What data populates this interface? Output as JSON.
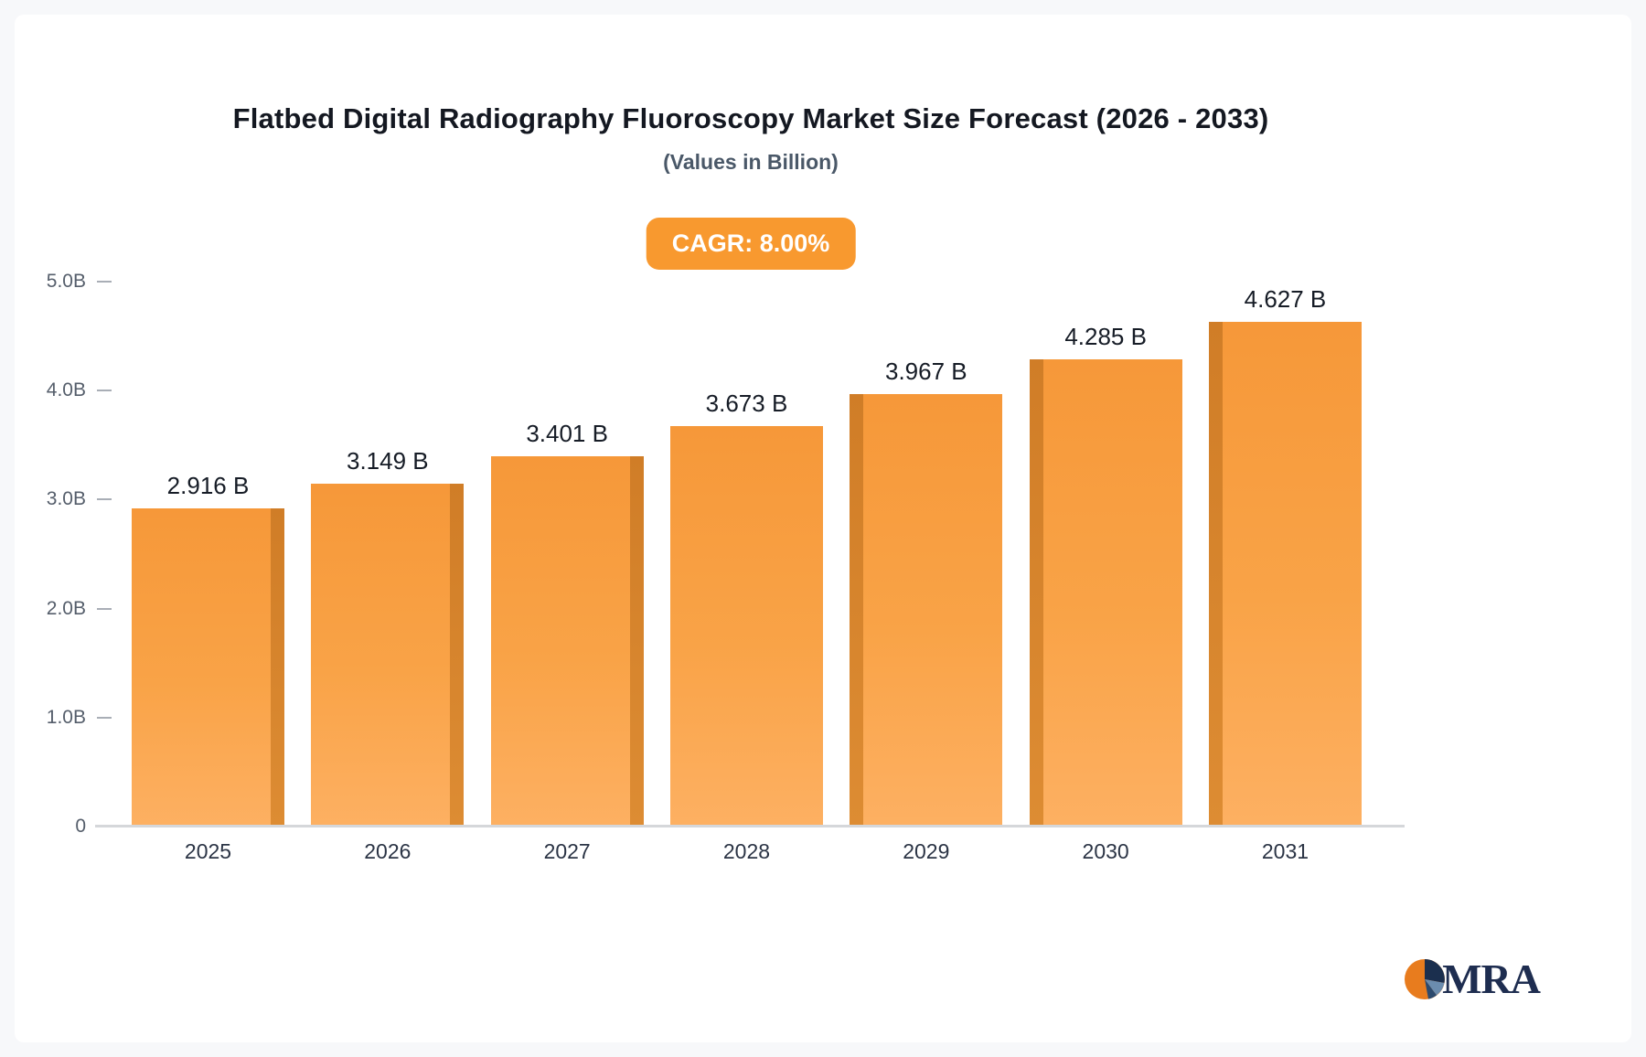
{
  "title": "Flatbed Digital Radiography Fluoroscopy Market Size Forecast (2026 - 2033)",
  "subtitle": "(Values in Billion)",
  "cagr_badge": "CAGR: 8.00%",
  "logo": {
    "text": "MRA"
  },
  "colors": {
    "bar": "#f79a3a",
    "bar_side": "#d07d27",
    "badge": "#f8992f",
    "logo_orange": "#e87c1e",
    "logo_navy": "#1b2f4e",
    "logo_blue": "#6b8cae"
  },
  "chart_data": {
    "type": "bar",
    "title": "Flatbed Digital Radiography Fluoroscopy Market Size Forecast (2026 - 2033)",
    "subtitle": "(Values in Billion)",
    "categories": [
      "2025",
      "2026",
      "2027",
      "2028",
      "2029",
      "2030",
      "2031"
    ],
    "values": [
      2.916,
      3.149,
      3.401,
      3.673,
      3.967,
      4.285,
      4.627
    ],
    "value_labels": [
      "2.916 B",
      "3.149 B",
      "3.401 B",
      "3.673 B",
      "3.967 B",
      "4.285 B",
      "4.627 B"
    ],
    "xlabel": "",
    "ylabel": "",
    "ylim": [
      0,
      5
    ],
    "grid": false,
    "legend": false,
    "yticks": [
      {
        "value": 5,
        "label": "5.0B"
      },
      {
        "value": 4,
        "label": "4.0B"
      },
      {
        "value": 3,
        "label": "3.0B"
      },
      {
        "value": 2,
        "label": "2.0B"
      },
      {
        "value": 1,
        "label": "1.0B"
      },
      {
        "value": 0,
        "label": "0"
      }
    ]
  }
}
